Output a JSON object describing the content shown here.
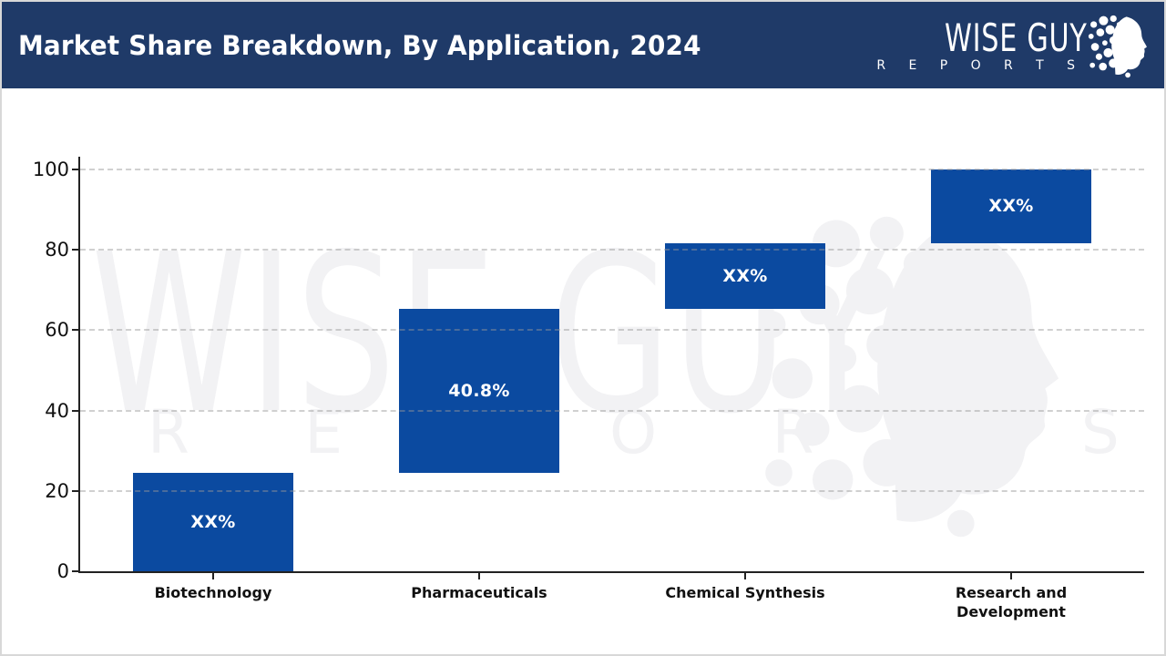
{
  "header": {
    "title": "Market Share Breakdown, By Application, 2024",
    "logo": {
      "brand": "WISE GUY",
      "sub": "REPORTS"
    }
  },
  "watermark": {
    "brand": "WISE GUY",
    "sub": "REPORTS"
  },
  "chart_data": {
    "type": "bar",
    "variant": "floating-segment-waterfall",
    "title": "Market Share Breakdown, By Application, 2024",
    "categories": [
      "Biotechnology",
      "Pharmaceuticals",
      "Chemical Synthesis",
      "Research and Development"
    ],
    "segments": [
      {
        "category": "Biotechnology",
        "start": 0,
        "end": 24.5,
        "label": "XX%"
      },
      {
        "category": "Pharmaceuticals",
        "start": 24.5,
        "end": 65.3,
        "label": "40.8%"
      },
      {
        "category": "Chemical Synthesis",
        "start": 65.3,
        "end": 81.7,
        "label": "XX%"
      },
      {
        "category": "Research and Development",
        "start": 81.7,
        "end": 100,
        "label": "XX%"
      }
    ],
    "xlabel": "",
    "ylabel": "",
    "y_ticks": [
      0,
      20,
      40,
      60,
      80,
      100
    ],
    "ylim": [
      0,
      105
    ],
    "grid": "horizontal-dashed",
    "legend": "none",
    "colors": {
      "bar": "#0b4aa0",
      "bar_label": "#ffffff",
      "header_bg": "#1f3a68",
      "grid": "#d2d2d2",
      "axis": "#222222",
      "watermark": "#f2f2f4"
    }
  }
}
